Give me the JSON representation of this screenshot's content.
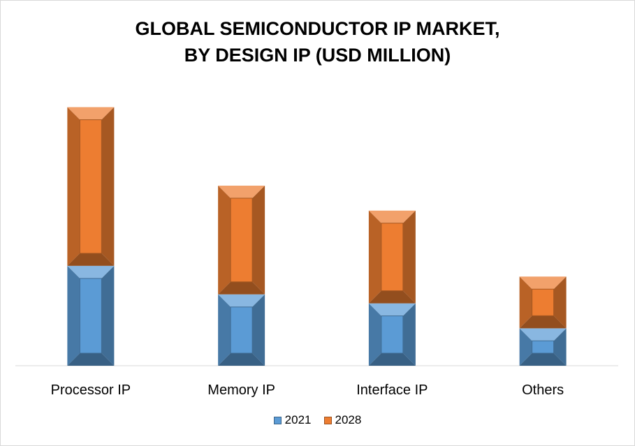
{
  "chart_data": {
    "type": "bar",
    "stacked": true,
    "title_lines": [
      "GLOBAL SEMICONDUCTOR IP MARKET,",
      "BY DESIGN IP (USD MILLION)"
    ],
    "categories": [
      "Processor IP",
      "Memory IP",
      "Interface IP",
      "Others"
    ],
    "series": [
      {
        "name": "2021",
        "values": [
          2800,
          2000,
          1750,
          1050
        ],
        "color": "#5b9bd5"
      },
      {
        "name": "2028",
        "values": [
          4450,
          3050,
          2600,
          1450
        ],
        "color": "#ed7d31"
      }
    ],
    "ylim": [
      0,
      7300
    ],
    "grid": false,
    "legend_position": "bottom"
  }
}
